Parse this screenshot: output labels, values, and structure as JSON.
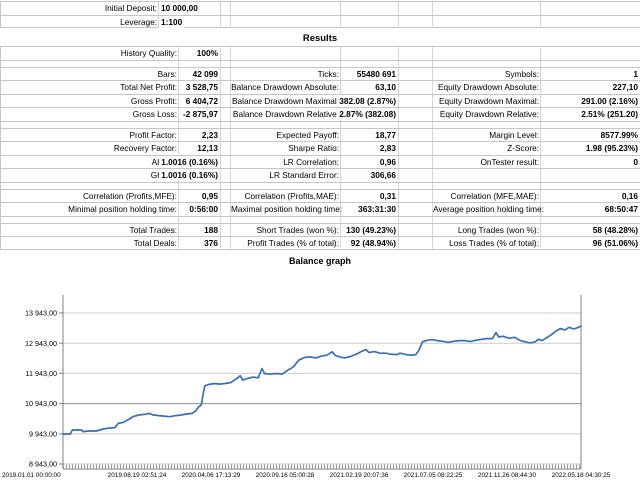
{
  "settings": {
    "rows": [
      {
        "label": "Initial Deposit:",
        "value": "10 000,00"
      },
      {
        "label": "Leverage:",
        "value": "1:100"
      }
    ]
  },
  "results": {
    "title": "Results",
    "rows": [
      {
        "cells": [
          "History Quality:",
          "100%",
          "",
          "",
          "",
          ""
        ]
      },
      {
        "sep": true
      },
      {
        "cells": [
          "Bars:",
          "42 099",
          "Ticks:",
          "55480 691",
          "Symbols:",
          "1"
        ]
      },
      {
        "cells": [
          "Total Net Profit:",
          "3 528,75",
          "Balance Drawdown Absolute:",
          "63,10",
          "Equity Drawdown Absolute:",
          "227,10"
        ]
      },
      {
        "cells": [
          "Gross Profit:",
          "6 404,72",
          "Balance Drawdown Maximal:",
          "382.08 (2.87%)",
          "Equity Drawdown Maximal:",
          "291.00 (2.16%)"
        ]
      },
      {
        "cells": [
          "Gross Loss:",
          "-2 875,97",
          "Balance Drawdown Relative:",
          "2.87% (382.08)",
          "Equity Drawdown Relative:",
          "2.51% (251.20)"
        ]
      },
      {
        "sep": true
      },
      {
        "cells": [
          "Profit Factor:",
          "2,23",
          "Expected Payoff:",
          "18,77",
          "Margin Level:",
          "8577.99%"
        ]
      },
      {
        "cells": [
          "Recovery Factor:",
          "12,13",
          "Sharpe Ratio:",
          "2,83",
          "Z-Score:",
          "1.98 (95.23%)"
        ]
      },
      {
        "cells": [
          "AHPR:",
          "1.0016 (0.16%)",
          "LR Correlation:",
          "0,96",
          "OnTester result:",
          "0"
        ]
      },
      {
        "cells": [
          "GHPR:",
          "1.0016 (0.16%)",
          "LR Standard Error:",
          "306,66",
          "",
          ""
        ]
      },
      {
        "sep": true
      },
      {
        "cells": [
          "Correlation (Profits,MFE):",
          "0,95",
          "Correlation (Profits,MAE):",
          "0,31",
          "Correlation (MFE,MAE):",
          "0,16"
        ]
      },
      {
        "cells": [
          "Minimal position holding time:",
          "0:56:00",
          "Maximal position holding time:",
          "363:31:30",
          "Average position holding time:",
          "68:50:47"
        ]
      },
      {
        "sep": true
      },
      {
        "cells": [
          "Total Trades:",
          "188",
          "Short Trades (won %):",
          "130 (49.23%)",
          "Long Trades (won %):",
          "58 (48.28%)"
        ]
      },
      {
        "cells": [
          "Total Deals:",
          "376",
          "Profit Trades (% of total):",
          "92 (48.94%)",
          "Loss Trades (% of total):",
          "96 (51.06%)"
        ]
      }
    ]
  },
  "chart_data": {
    "type": "line",
    "title": "Balance graph",
    "xlabel": "",
    "ylabel": "",
    "grid": true,
    "legend": "none",
    "line_color": "#3a6fb5",
    "axis_color": "#808080",
    "grid_color": "#cccccc",
    "ylim": [
      8777,
      14600
    ],
    "y_ticks": [
      {
        "label": "13 943,00",
        "value": 13943
      },
      {
        "label": "12 943,00",
        "value": 12943
      },
      {
        "label": "11 943,00",
        "value": 11943
      },
      {
        "label": "10 943,00",
        "value": 10943
      },
      {
        "label": "9 943,00",
        "value": 9943
      },
      {
        "label": "8 943,00",
        "value": 8943
      }
    ],
    "x_labels": [
      "2019.01.01 00:00:00",
      "2019.08.19 02:51:24",
      "2020.04.06 17:13:29",
      "2020.09.16 05:00:28",
      "2021.02.19 20:07:36",
      "2021.07.05 08:22:25",
      "2021.11.26 08:44:30",
      "2022.05.18 04:30:25"
    ],
    "series": [
      {
        "name": "Balance",
        "points": [
          [
            0.0,
            9938
          ],
          [
            0.014,
            9938
          ],
          [
            0.018,
            10070
          ],
          [
            0.036,
            10070
          ],
          [
            0.039,
            10015
          ],
          [
            0.05,
            10037
          ],
          [
            0.064,
            10037
          ],
          [
            0.078,
            10103
          ],
          [
            0.085,
            10125
          ],
          [
            0.1,
            10147
          ],
          [
            0.107,
            10290
          ],
          [
            0.117,
            10323
          ],
          [
            0.128,
            10433
          ],
          [
            0.135,
            10510
          ],
          [
            0.146,
            10565
          ],
          [
            0.157,
            10587
          ],
          [
            0.167,
            10620
          ],
          [
            0.174,
            10565
          ],
          [
            0.192,
            10532
          ],
          [
            0.206,
            10510
          ],
          [
            0.217,
            10543
          ],
          [
            0.228,
            10565
          ],
          [
            0.238,
            10598
          ],
          [
            0.249,
            10620
          ],
          [
            0.256,
            10697
          ],
          [
            0.262,
            10840
          ],
          [
            0.267,
            10895
          ],
          [
            0.27,
            11225
          ],
          [
            0.274,
            11533
          ],
          [
            0.281,
            11577
          ],
          [
            0.292,
            11610
          ],
          [
            0.302,
            11588
          ],
          [
            0.313,
            11610
          ],
          [
            0.324,
            11643
          ],
          [
            0.334,
            11753
          ],
          [
            0.342,
            11863
          ],
          [
            0.347,
            11720
          ],
          [
            0.356,
            11775
          ],
          [
            0.367,
            11819
          ],
          [
            0.377,
            11797
          ],
          [
            0.384,
            12105
          ],
          [
            0.389,
            11940
          ],
          [
            0.399,
            11918
          ],
          [
            0.413,
            11940
          ],
          [
            0.423,
            11918
          ],
          [
            0.434,
            12050
          ],
          [
            0.445,
            12160
          ],
          [
            0.455,
            12380
          ],
          [
            0.466,
            12468
          ],
          [
            0.477,
            12490
          ],
          [
            0.488,
            12457
          ],
          [
            0.498,
            12512
          ],
          [
            0.509,
            12545
          ],
          [
            0.52,
            12655
          ],
          [
            0.525,
            12545
          ],
          [
            0.534,
            12490
          ],
          [
            0.544,
            12457
          ],
          [
            0.555,
            12501
          ],
          [
            0.566,
            12578
          ],
          [
            0.577,
            12677
          ],
          [
            0.585,
            12732
          ],
          [
            0.591,
            12633
          ],
          [
            0.601,
            12666
          ],
          [
            0.612,
            12611
          ],
          [
            0.623,
            12611
          ],
          [
            0.633,
            12578
          ],
          [
            0.644,
            12567
          ],
          [
            0.651,
            12611
          ],
          [
            0.662,
            12567
          ],
          [
            0.672,
            12545
          ],
          [
            0.681,
            12567
          ],
          [
            0.687,
            12710
          ],
          [
            0.694,
            12985
          ],
          [
            0.701,
            13029
          ],
          [
            0.712,
            13062
          ],
          [
            0.722,
            13029
          ],
          [
            0.733,
            13007
          ],
          [
            0.744,
            12974
          ],
          [
            0.754,
            13007
          ],
          [
            0.765,
            13029
          ],
          [
            0.776,
            13029
          ],
          [
            0.786,
            12996
          ],
          [
            0.797,
            13040
          ],
          [
            0.808,
            13073
          ],
          [
            0.818,
            13095
          ],
          [
            0.829,
            13095
          ],
          [
            0.836,
            13293
          ],
          [
            0.841,
            13150
          ],
          [
            0.85,
            13172
          ],
          [
            0.861,
            13106
          ],
          [
            0.872,
            13139
          ],
          [
            0.883,
            13029
          ],
          [
            0.893,
            12985
          ],
          [
            0.902,
            12952
          ],
          [
            0.911,
            12985
          ],
          [
            0.918,
            13073
          ],
          [
            0.925,
            13029
          ],
          [
            0.934,
            13128
          ],
          [
            0.943,
            13227
          ],
          [
            0.952,
            13348
          ],
          [
            0.96,
            13425
          ],
          [
            0.969,
            13381
          ],
          [
            0.977,
            13469
          ],
          [
            0.986,
            13414
          ],
          [
            0.994,
            13458
          ],
          [
            1.0,
            13513
          ]
        ]
      }
    ]
  }
}
